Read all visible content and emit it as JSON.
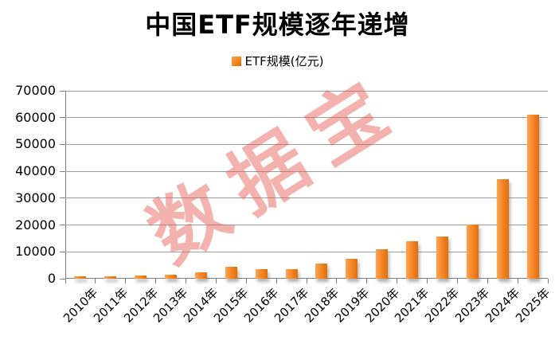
{
  "title": "中国ETF规模逐年递增",
  "legend": {
    "label": "ETF规模(亿元)",
    "marker_color": "#ED7D31"
  },
  "watermark": "数据宝",
  "chart_data": {
    "type": "bar",
    "title": "中国ETF规模逐年递增",
    "series_name": "ETF规模(亿元)",
    "categories": [
      "2010年",
      "2011年",
      "2012年",
      "2013年",
      "2014年",
      "2015年",
      "2016年",
      "2017年",
      "2018年",
      "2019年",
      "2020年",
      "2021年",
      "2022年",
      "2023年",
      "2024年",
      "2025年"
    ],
    "values": [
      800,
      800,
      1300,
      1600,
      2400,
      4400,
      3700,
      3600,
      5500,
      7300,
      11000,
      14000,
      15800,
      20300,
      37200,
      61000
    ],
    "xlabel": "",
    "ylabel": "",
    "ylim": [
      0,
      70000
    ],
    "ytick_step": 10000,
    "yticks": [
      0,
      10000,
      20000,
      30000,
      40000,
      50000,
      60000,
      70000
    ],
    "grid": true,
    "legend_position": "top-center",
    "xlabel_rotation_deg": -45,
    "bar_gradient": [
      "#FCA452",
      "#E06E0A"
    ],
    "gridline_color": "#9C9C9C",
    "axis_color": "#7F7F7F",
    "text_color": "#000000",
    "watermark_color": "#E55C51"
  }
}
